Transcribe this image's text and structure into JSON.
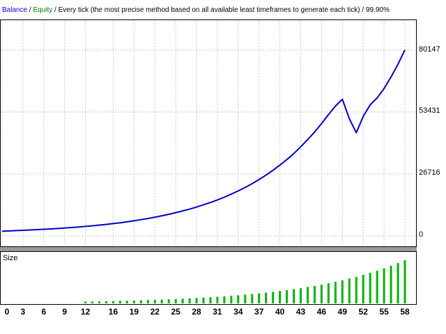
{
  "header": {
    "balance_label": "Balance",
    "sep1": " / ",
    "equity_label": "Equity",
    "rest": " / Every tick (the most precise method based on all available least timeframes to generate each tick) / 99.90%"
  },
  "colors": {
    "balance_text": "#0000FF",
    "equity_text": "#008000",
    "balance_line": "#0000C8",
    "size_bar": "#00B400",
    "grid": "#C8C8C8"
  },
  "size_panel": {
    "label": "Size"
  },
  "chart_data": [
    {
      "type": "line",
      "name": "Balance",
      "title": "Balance / Equity / Every tick (the most precise method based on all available least timeframes to generate each tick) / 99.90%",
      "legend": [
        "Balance",
        "Equity"
      ],
      "x_ticks": [
        0,
        3,
        6,
        9,
        12,
        16,
        19,
        22,
        25,
        28,
        31,
        34,
        37,
        40,
        43,
        46,
        49,
        52,
        55,
        58
      ],
      "y_ticks": [
        0,
        26716,
        53431,
        80147
      ],
      "xlim": [
        0,
        59
      ],
      "ylim": [
        -4500,
        93000
      ],
      "values": [
        2000,
        2150,
        2300,
        2400,
        2550,
        2700,
        2850,
        3000,
        3200,
        3400,
        3600,
        3850,
        4100,
        4350,
        4650,
        4950,
        5300,
        5650,
        6050,
        6500,
        7000,
        7500,
        8050,
        8650,
        9300,
        10000,
        10750,
        11550,
        12450,
        13400,
        14400,
        15500,
        16700,
        18000,
        19400,
        20900,
        22500,
        24300,
        26200,
        28300,
        30500,
        32900,
        35500,
        38400,
        41500,
        44800,
        48400,
        52300,
        56000,
        58900,
        50500,
        44500,
        51500,
        56500,
        59500,
        63500,
        68500,
        74000,
        80147
      ]
    },
    {
      "type": "bar",
      "name": "Size",
      "ymax": 5.7,
      "values": [
        0.1,
        0.11,
        0.11,
        0.12,
        0.13,
        0.14,
        0.15,
        0.16,
        0.17,
        0.19,
        0.2,
        0.21,
        0.23,
        0.25,
        0.26,
        0.28,
        0.3,
        0.33,
        0.35,
        0.37,
        0.4,
        0.43,
        0.46,
        0.49,
        0.53,
        0.57,
        0.61,
        0.65,
        0.7,
        0.75,
        0.8,
        0.86,
        0.92,
        0.99,
        1.06,
        1.14,
        1.22,
        1.31,
        1.4,
        1.5,
        1.61,
        1.73,
        1.85,
        1.98,
        2.13,
        2.28,
        2.44,
        2.62,
        2.81,
        3.01,
        3.23,
        3.46,
        3.71,
        3.98,
        4.26,
        4.57,
        4.9,
        5.25,
        5.63
      ]
    }
  ]
}
